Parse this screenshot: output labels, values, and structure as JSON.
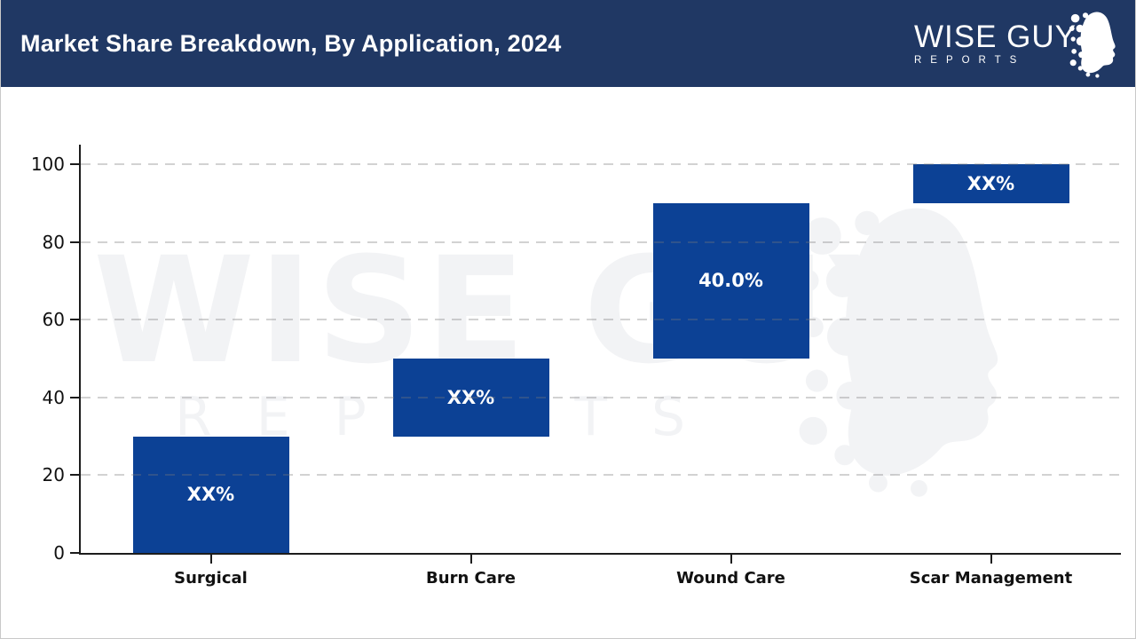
{
  "header": {
    "title": "Market Share Breakdown, By Application, 2024",
    "bg_color": "#203864",
    "logo": {
      "line1": "WISE GUY",
      "line2": "REPORTS"
    }
  },
  "watermark": {
    "line1": "WISE GUY",
    "line2": "REPORTS"
  },
  "chart_data": {
    "type": "bar",
    "subtype": "floating-range-waterfall",
    "title": "Market Share Breakdown, By Application, 2024",
    "categories": [
      "Surgical",
      "Burn Care",
      "Wound Care",
      "Scar Management"
    ],
    "series": [
      {
        "name": "Market share (%)",
        "ranges": [
          [
            0,
            30
          ],
          [
            30,
            50
          ],
          [
            50,
            90
          ],
          [
            90,
            100
          ]
        ],
        "labels": [
          "XX%",
          "XX%",
          "40.0%",
          "XX%"
        ]
      }
    ],
    "xlabel": "",
    "ylabel": "",
    "ylim": [
      0,
      105
    ],
    "yticks": [
      0,
      20,
      40,
      60,
      80,
      100
    ],
    "grid": "horizontal dashed, drawn above bars",
    "legend": "none",
    "bar_color": "#0c4195",
    "bar_label_color": "#ffffff",
    "grid_color": "#d6d6d6",
    "axis_color": "#1c1c1c",
    "watermark_color": "#f2f3f5"
  }
}
